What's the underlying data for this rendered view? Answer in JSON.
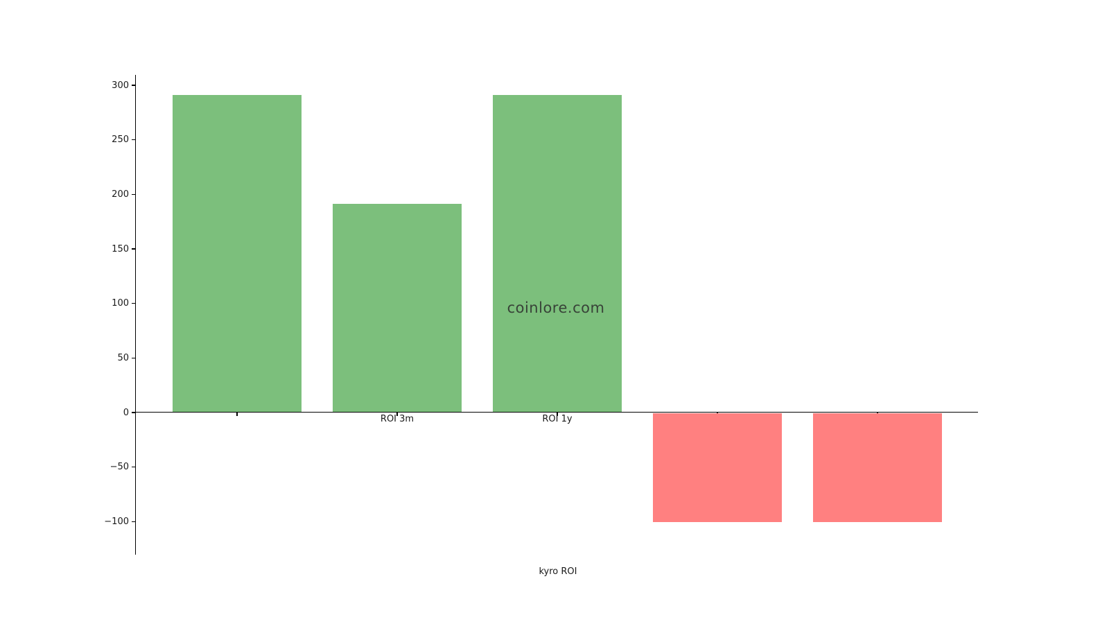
{
  "chart_data": {
    "type": "bar",
    "categories": [
      "",
      "ROI 3m",
      "ROI 1y",
      "",
      ""
    ],
    "values": [
      291,
      191,
      291,
      -100,
      -100
    ],
    "bar_colors": [
      "#7cbf7c",
      "#7cbf7c",
      "#7cbf7c",
      "#ff8080",
      "#ff8080"
    ],
    "positive_color": "#7cbf7c",
    "negative_color": "#ff8080",
    "title": "",
    "xlabel": "kyro ROI",
    "ylabel": "",
    "yticks": [
      300,
      250,
      200,
      150,
      100,
      50,
      0,
      -50,
      -100
    ],
    "ytick_labels": [
      "300",
      "250",
      "200",
      "150",
      "100",
      "50",
      "0",
      "−50",
      "−100"
    ],
    "ylim": [
      -131,
      310
    ],
    "grid": false,
    "legend": false,
    "watermark": "coinlore.com",
    "axis_color": "#000000",
    "background_color": "#ffffff"
  }
}
